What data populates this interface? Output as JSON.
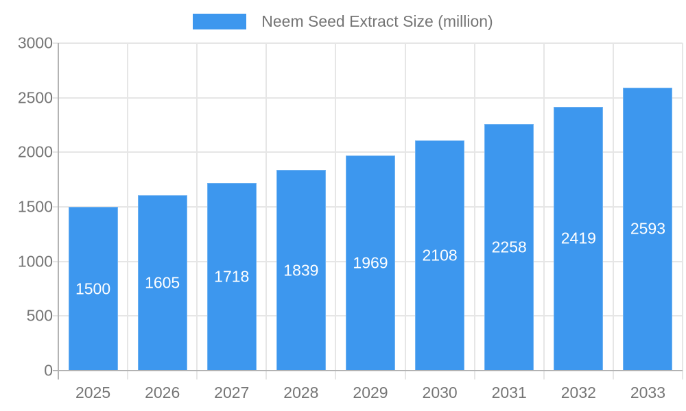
{
  "chart_data": {
    "type": "bar",
    "title": "Neem Seed Extract Size (million)",
    "categories": [
      "2025",
      "2026",
      "2027",
      "2028",
      "2029",
      "2030",
      "2031",
      "2032",
      "2033"
    ],
    "values": [
      1500,
      1605,
      1718,
      1839,
      1969,
      2108,
      2258,
      2419,
      2593
    ],
    "xlabel": "",
    "ylabel": "",
    "ylim": [
      0,
      3000
    ],
    "yticks": [
      0,
      500,
      1000,
      1500,
      2000,
      2500,
      3000
    ],
    "grid": true,
    "legend_position": "top-center",
    "value_labels": "inside-center"
  },
  "legend": {
    "label": "Neem Seed Extract Size (million)"
  },
  "colors": {
    "bar": "#3d97ee",
    "grid_line": "#e6e6e6",
    "axis_line": "#b3b3b3",
    "tick_text": "#757575",
    "legend_text": "#757575",
    "value_label_text": "#ffffff",
    "background": "#ffffff"
  }
}
